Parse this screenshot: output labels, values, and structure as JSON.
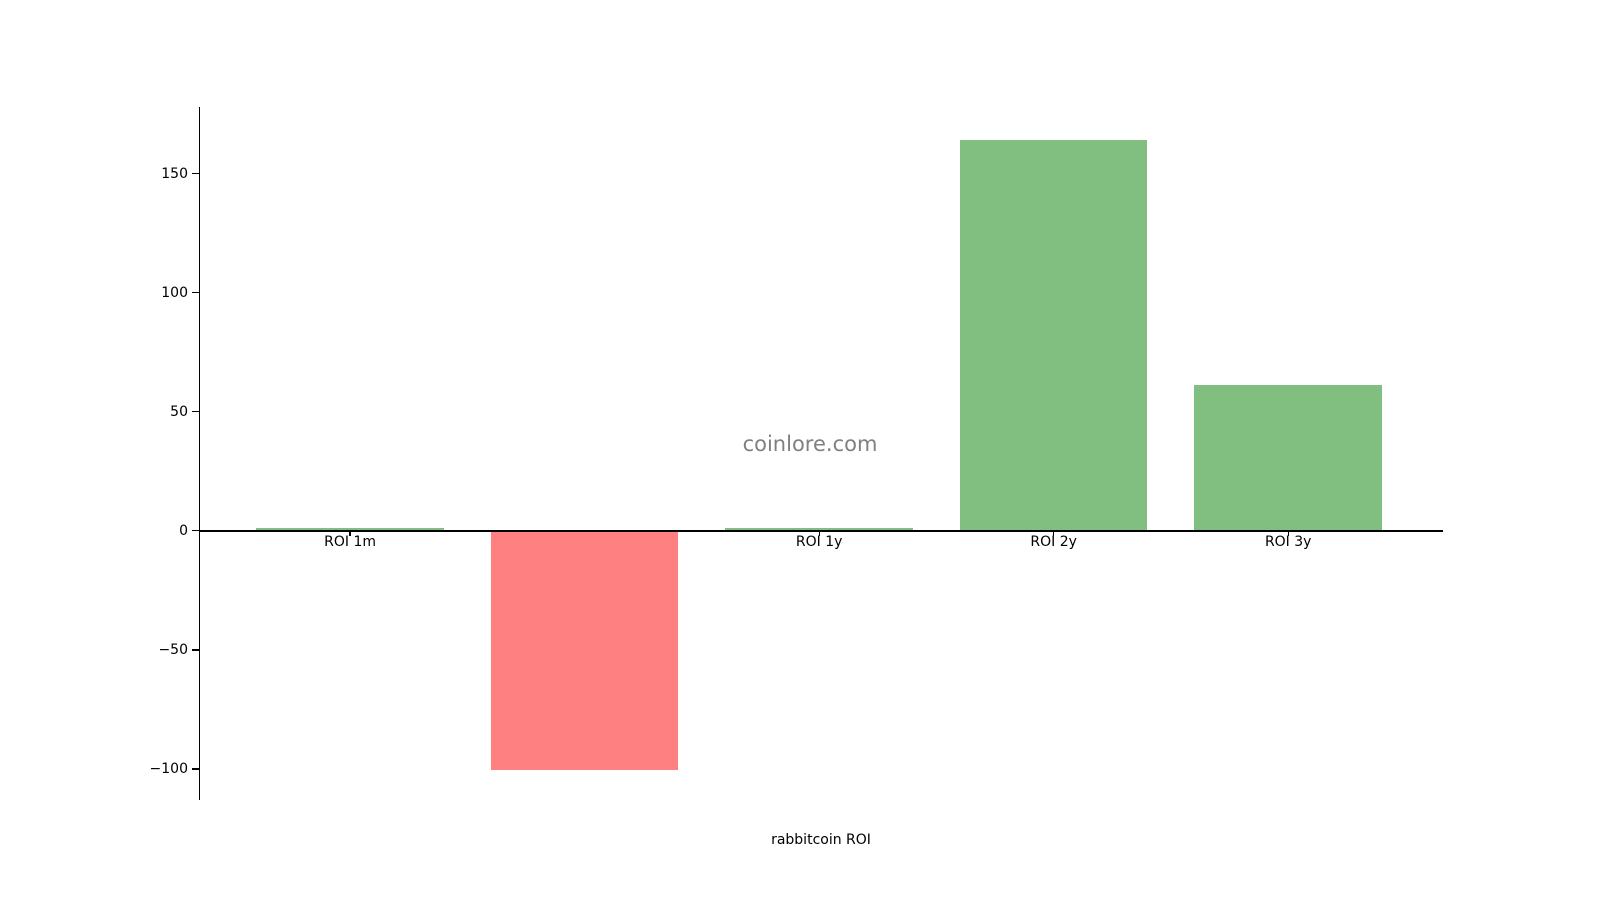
{
  "watermark": {
    "text": "coinlore.com",
    "color": "#808080"
  },
  "chart_data": {
    "type": "bar",
    "title": "",
    "xlabel": "rabbitcoin ROI",
    "ylabel": "",
    "categories": [
      "ROI 1m",
      "",
      "ROI 1y",
      "ROI 2y",
      "ROI 3y"
    ],
    "values": [
      1,
      -100,
      1,
      164,
      61
    ],
    "bar_colors": {
      "positive": "#80bf80",
      "negative": "#ff8080"
    },
    "axis_color": "#000000",
    "ylim": [
      -113,
      178
    ],
    "yticks": [
      -100,
      -50,
      0,
      50,
      100,
      150
    ],
    "ytick_labels": [
      "−100",
      "−50",
      "0",
      "50",
      "100",
      "150"
    ],
    "xlim": [
      -0.64,
      4.66
    ],
    "bar_width": 0.8,
    "grid": false,
    "legend_position": "none"
  }
}
